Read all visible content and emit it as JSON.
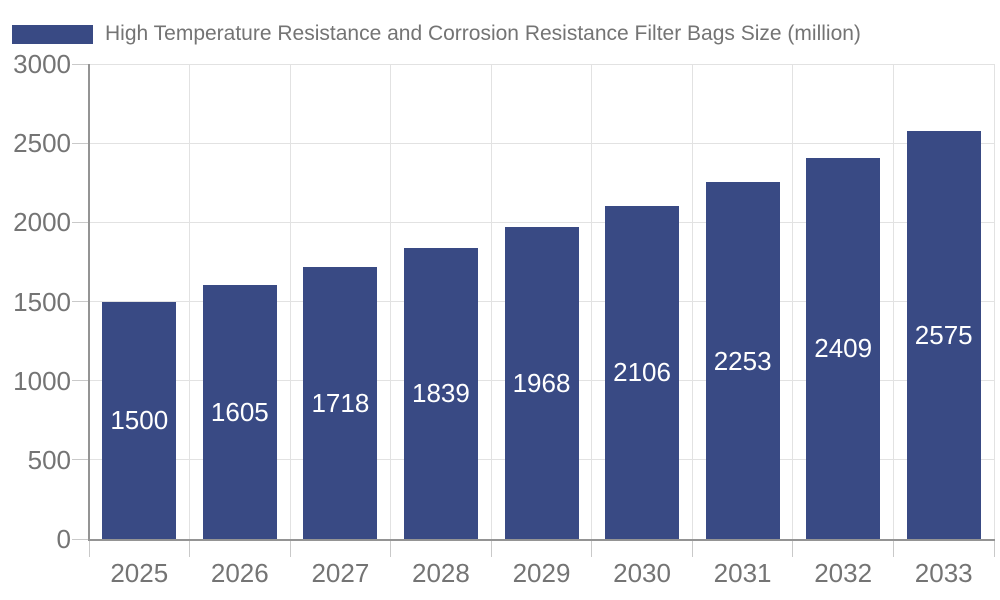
{
  "chart_data": {
    "type": "bar",
    "title": "High Temperature Resistance and Corrosion Resistance Filter Bags Size (million)",
    "categories": [
      "2025",
      "2026",
      "2027",
      "2028",
      "2029",
      "2030",
      "2031",
      "2032",
      "2033"
    ],
    "values": [
      1500,
      1605,
      1718,
      1839,
      1968,
      2106,
      2253,
      2409,
      2575
    ],
    "series": [
      {
        "name": "High Temperature Resistance and Corrosion Resistance Filter Bags Size (million)",
        "values": [
          1500,
          1605,
          1718,
          1839,
          1968,
          2106,
          2253,
          2409,
          2575
        ]
      }
    ],
    "xlabel": "",
    "ylabel": "",
    "ylim": [
      0,
      3000
    ],
    "yticks": [
      0,
      500,
      1000,
      1500,
      2000,
      2500,
      3000
    ],
    "grid": true,
    "legend_position": "top-left",
    "value_label_position": "inside-center",
    "colors": {
      "bar": "#394a84",
      "value_label": "#ffffff",
      "grid_line": "#e2e2e2",
      "axis_line": "#949494",
      "tick_mark": "#c9c9c9",
      "text": "#747474"
    }
  }
}
